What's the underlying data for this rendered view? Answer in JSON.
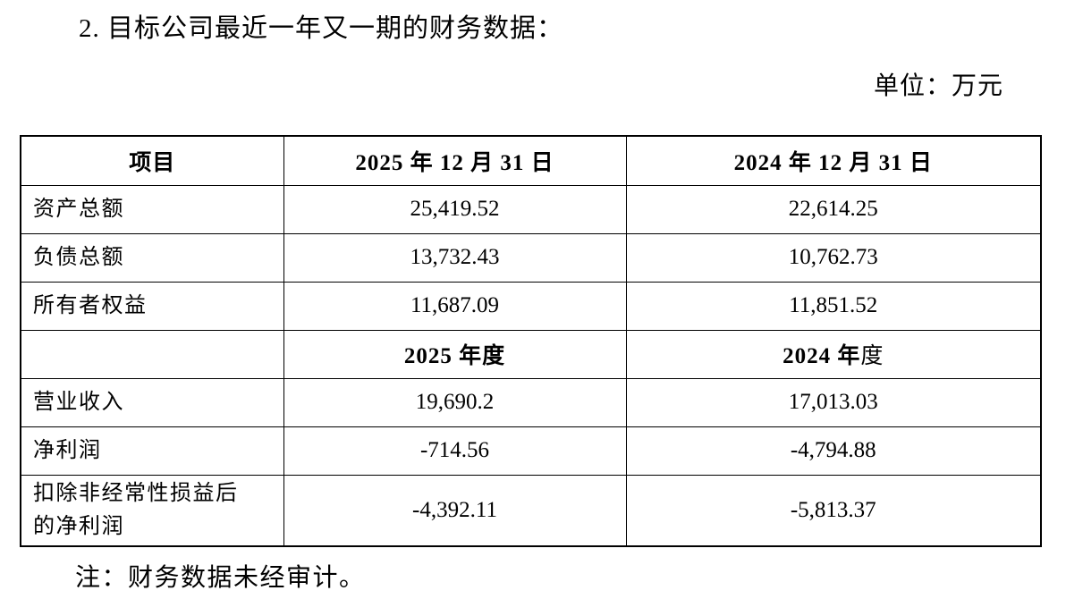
{
  "heading": {
    "text": "2. 目标公司最近一年又一期的财务数据："
  },
  "unit": {
    "label": "单位：万元"
  },
  "table": {
    "columns": {
      "item": "项目",
      "date_2025": "2025 年 12 月 31 日",
      "date_2024": "2024 年 12 月 31 日"
    },
    "balance_rows": [
      {
        "label": "资产总额",
        "y2025": "25,419.52",
        "y2024": "22,614.25"
      },
      {
        "label": "负债总额",
        "y2025": "13,732.43",
        "y2024": "10,762.73"
      },
      {
        "label": "所有者权益",
        "y2025": "11,687.09",
        "y2024": "11,851.52"
      }
    ],
    "period_header": {
      "label": "",
      "col2": "2025 年度",
      "col3_bold": "2024 年",
      "col3_normal": "度"
    },
    "income_rows": [
      {
        "label": "营业收入",
        "y2025": "19,690.2",
        "y2024": "17,013.03"
      },
      {
        "label": "净利润",
        "y2025": "-714.56",
        "y2024": "-4,794.88"
      },
      {
        "label": "扣除非经常性损益后的净利润",
        "y2025": "-4,392.11",
        "y2024": "-5,813.37"
      }
    ]
  },
  "footnote": {
    "text": "注：财务数据未经审计。"
  },
  "colors": {
    "text": "#000000",
    "background": "#ffffff",
    "border": "#000000"
  }
}
